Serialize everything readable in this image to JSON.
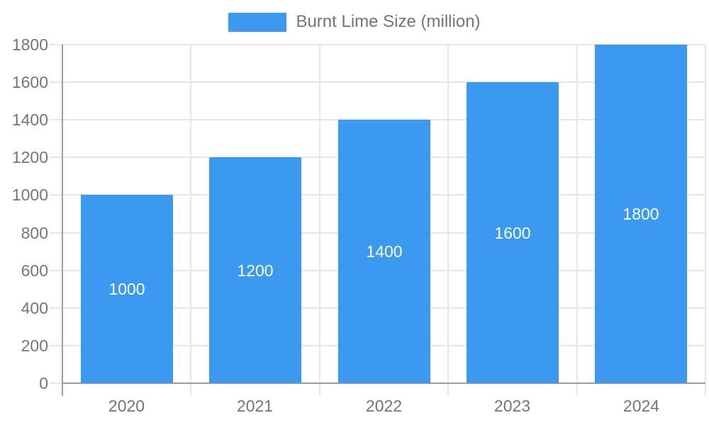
{
  "chart_data": {
    "type": "bar",
    "title": "",
    "legend_label": "Burnt Lime Size (million)",
    "legend_position": "top",
    "categories": [
      "2020",
      "2021",
      "2022",
      "2023",
      "2024"
    ],
    "series": [
      {
        "name": "Burnt Lime Size (million)",
        "values": [
          1000,
          1200,
          1400,
          1600,
          1800
        ]
      }
    ],
    "bar_value_labels": [
      "1000",
      "1200",
      "1400",
      "1600",
      "1800"
    ],
    "xlabel": "",
    "ylabel": "",
    "ylim": [
      0,
      1800
    ],
    "ytick_step": 200,
    "ytick_labels": [
      "0",
      "200",
      "400",
      "600",
      "800",
      "1000",
      "1200",
      "1400",
      "1600",
      "1800"
    ],
    "grid": true,
    "colors": {
      "bar": "#3B99F0",
      "bar_label_text": "#FFFFFF",
      "axis_text": "#757575",
      "axis_line": "#9E9E9E",
      "gridline": "#E6E6E6",
      "background": "#FFFFFF"
    }
  }
}
